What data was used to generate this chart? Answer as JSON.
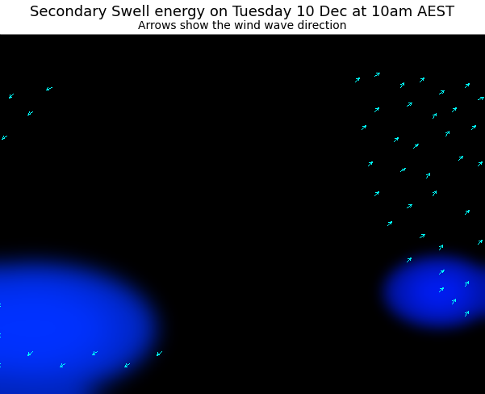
{
  "title": "Secondary Swell energy on Tuesday 10 Dec at 10am AEST",
  "subtitle": "Arrows show the wind wave direction",
  "title_fontsize": 13,
  "subtitle_fontsize": 10,
  "fig_width": 6.01,
  "fig_height": 4.88,
  "dpi": 100,
  "map_extent": [
    100,
    175,
    -55,
    5
  ],
  "header_color": "#f0f0f0",
  "ocean_color": "#000000",
  "land_color": "#999999",
  "land_edge_color": "#555555",
  "border_color": "#222222",
  "state_border_color": "#111111",
  "arrow_color": "#00ffff",
  "swell_color_sw": "#0033ff",
  "swell_color_se": "#0022cc",
  "title_color": "#000000"
}
